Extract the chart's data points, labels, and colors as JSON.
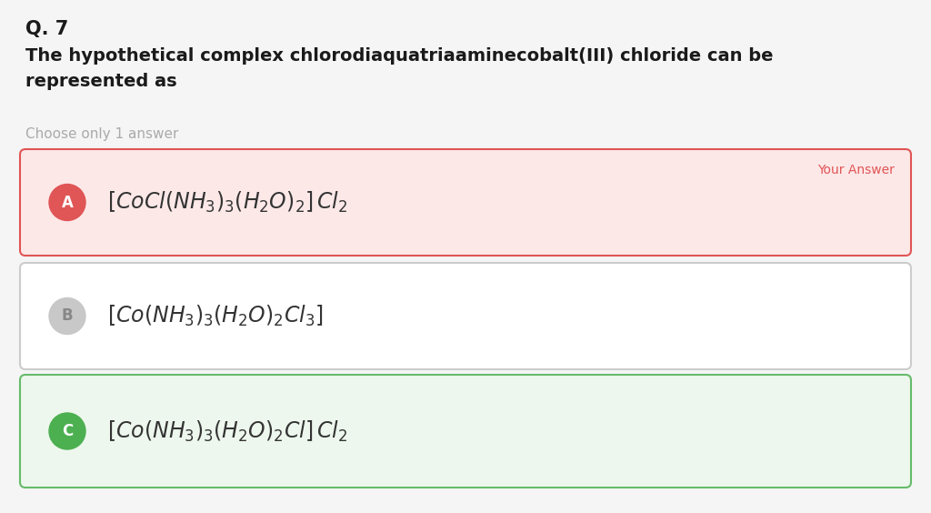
{
  "question_number": "Q. 7",
  "question_text_line1": "The hypothetical complex chlorodiaquatriaaminecobalt(III) chloride can be",
  "question_text_line2": "represented as",
  "choose_text": "Choose only 1 answer",
  "options": [
    {
      "label": "A",
      "formula": "$[CoCl(NH_3)_3(H_2O)_2]\\,Cl_2$",
      "bg_color": "#fde8e8",
      "border_color": "#e05555",
      "circle_color": "#e05555",
      "label_text_color": "#ffffff",
      "is_your_answer": true,
      "is_correct": false
    },
    {
      "label": "B",
      "formula": "$[Co(NH_3)_3(H_2O)_2Cl_3]$",
      "bg_color": "#ffffff",
      "border_color": "#cccccc",
      "circle_color": "#c8c8c8",
      "label_text_color": "#888888",
      "is_your_answer": false,
      "is_correct": false
    },
    {
      "label": "C",
      "formula": "$[Co(NH_3)_3(H_2O)_2Cl]\\,Cl_2$",
      "bg_color": "#edf7ed",
      "border_color": "#66bb6a",
      "circle_color": "#4caf50",
      "label_text_color": "#ffffff",
      "is_your_answer": false,
      "is_correct": true
    }
  ],
  "your_answer_text": "Your Answer",
  "your_answer_color": "#e05555",
  "background_color": "#f5f5f5",
  "question_fontsize": 14,
  "formula_fontsize": 17,
  "title_fontsize": 15
}
